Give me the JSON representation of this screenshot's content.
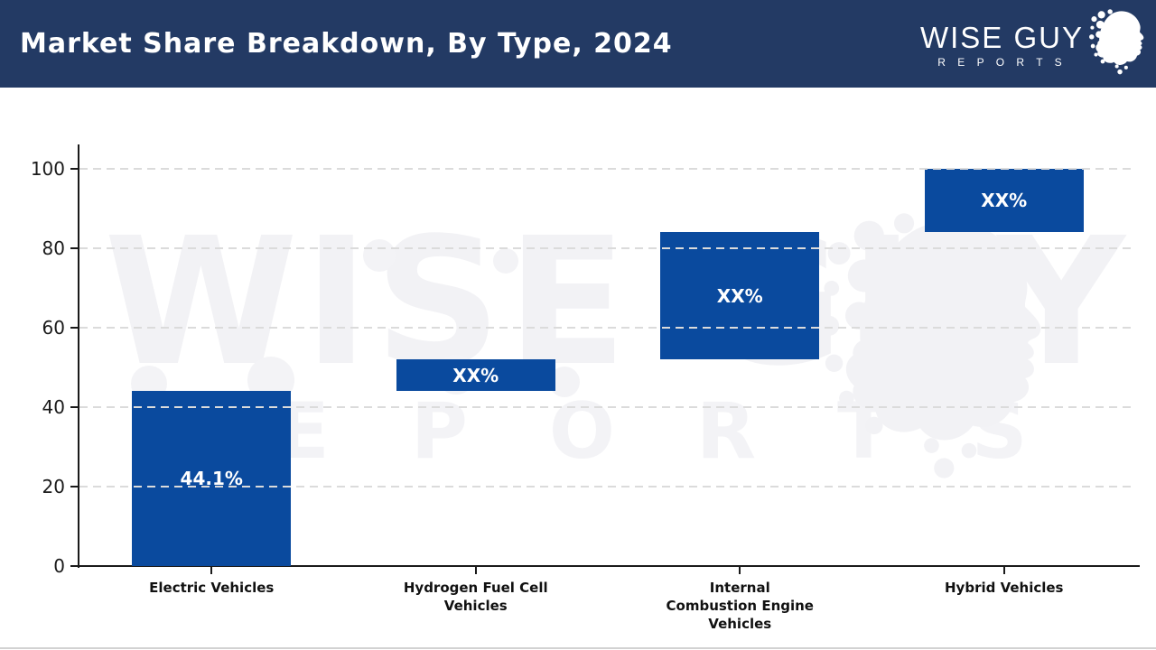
{
  "header": {
    "title": "Market Share Breakdown, By Type, 2024",
    "bg_color": "#233A64",
    "text_color": "#ffffff",
    "brand": {
      "name_top": "WISE GUY",
      "name_bottom": "R E P O R T S"
    }
  },
  "watermark": {
    "line1": "WISE GUY",
    "line2": "R E P O R T S"
  },
  "chart_data": {
    "type": "bar",
    "variant": "waterfall",
    "title": "Market Share Breakdown, By Type, 2024",
    "xlabel": "",
    "ylabel": "",
    "categories": [
      "Electric Vehicles",
      "Hydrogen Fuel Cell\nVehicles",
      "Internal\nCombustion Engine\nVehicles",
      "Hybrid Vehicles"
    ],
    "segments": [
      {
        "start": 0,
        "end": 44.1,
        "label": "44.1%"
      },
      {
        "start": 44.1,
        "end": 52,
        "label": "XX%"
      },
      {
        "start": 52,
        "end": 84,
        "label": "XX%"
      },
      {
        "start": 84,
        "end": 100,
        "label": "XX%"
      }
    ],
    "values_shown": [
      "44.1%",
      "XX%",
      "XX%",
      "XX%"
    ],
    "bar_color": "#0A4A9E",
    "bar_label_color": "#ffffff",
    "y_ticks": [
      0,
      20,
      40,
      60,
      80,
      100
    ],
    "ylim": [
      0,
      106
    ],
    "grid": true,
    "grid_color": "#DBDBDB",
    "grid_style": "dashed",
    "legend": null
  }
}
